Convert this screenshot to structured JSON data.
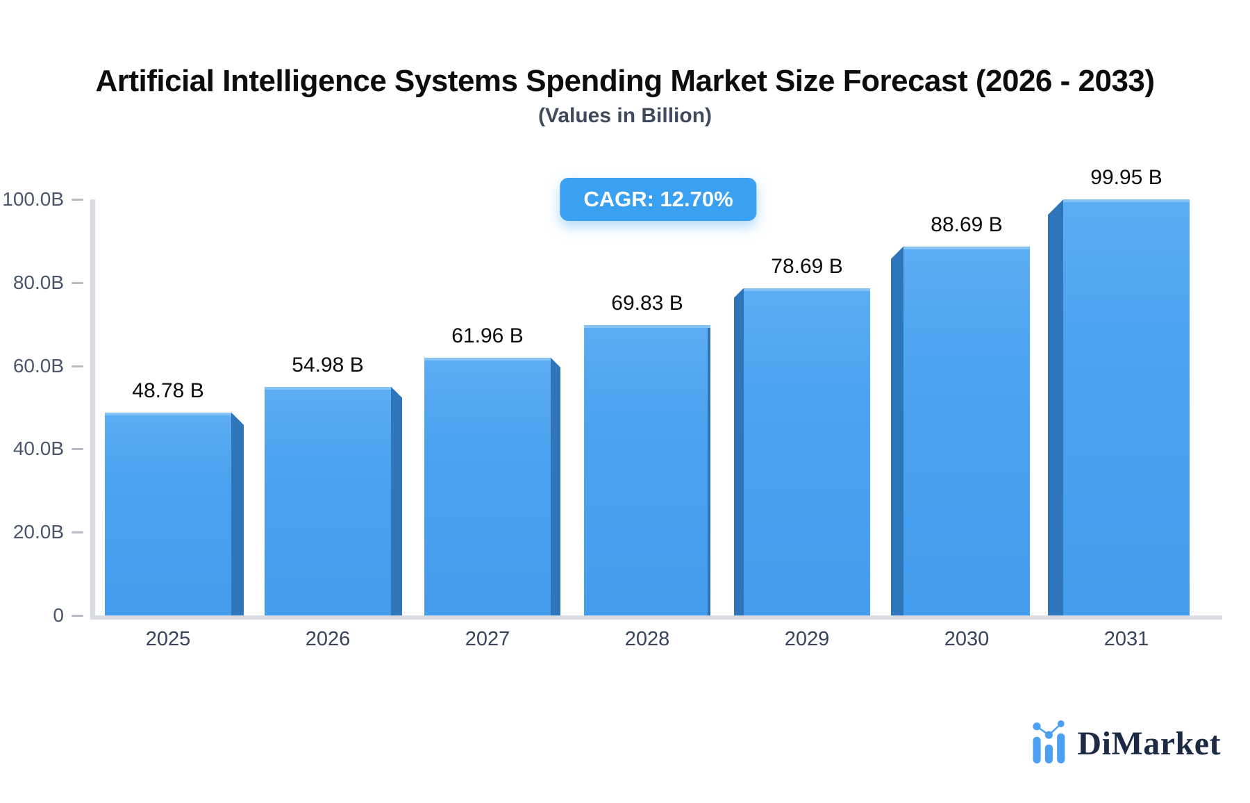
{
  "header": {
    "title": "Artificial Intelligence Systems Spending Market Size Forecast (2026 - 2033)",
    "subtitle": "(Values in Billion)"
  },
  "badge": {
    "label": "CAGR: 12.70%"
  },
  "chart_data": {
    "type": "bar",
    "title": "Artificial Intelligence Systems Spending Market Size Forecast (2026 - 2033)",
    "subtitle": "(Values in Billion)",
    "categories": [
      "2025",
      "2026",
      "2027",
      "2028",
      "2029",
      "2030",
      "2031"
    ],
    "values": [
      48.78,
      54.98,
      61.96,
      69.83,
      78.69,
      88.69,
      99.95
    ],
    "value_labels": [
      "48.78 B",
      "54.98 B",
      "61.96 B",
      "69.83 B",
      "78.69 B",
      "88.69 B",
      "99.95 B"
    ],
    "xlabel": "",
    "ylabel": "",
    "ylim": [
      0,
      100
    ],
    "yticks": [
      {
        "label": "100.0B",
        "value": 100
      },
      {
        "label": "80.0B",
        "value": 80
      },
      {
        "label": "60.0B",
        "value": 60
      },
      {
        "label": "40.0B",
        "value": 40
      },
      {
        "label": "20.0B",
        "value": 20
      },
      {
        "label": "0",
        "value": 0
      }
    ],
    "grid": false,
    "legend": "none",
    "bar_color": "#4aa2f0",
    "bar_top_highlight_color": "#85c2f6",
    "bar_side_color": "#2e76b9",
    "axis_color": "#d9dce3",
    "annotation": "CAGR: 12.70%",
    "annotation_color": "#3aa0f2"
  },
  "logo": {
    "text": "DiMarket",
    "icon_color": "#4d9ff3",
    "text_color": "#1c2a44"
  }
}
